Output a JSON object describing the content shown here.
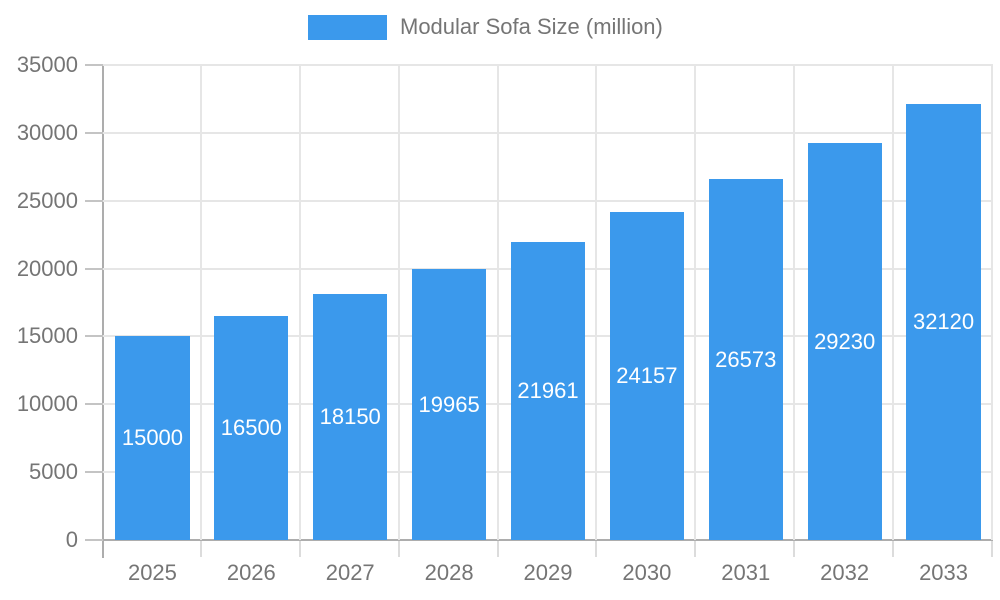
{
  "legend": {
    "label": "Modular Sofa Size (million)"
  },
  "colors": {
    "bar": "#3b99ec",
    "bar_label": "#ffffff",
    "axis_text": "#757575",
    "grid_line": "#e6e6e6",
    "axis_line": "#adadad",
    "background": "#ffffff"
  },
  "chart_data": {
    "type": "bar",
    "title": "Modular Sofa Size (million)",
    "categories": [
      "2025",
      "2026",
      "2027",
      "2028",
      "2029",
      "2030",
      "2031",
      "2032",
      "2033"
    ],
    "series": [
      {
        "name": "Modular Sofa Size (million)",
        "values": [
          15000,
          16500,
          18150,
          19965,
          21961,
          24157,
          26573,
          29230,
          32120
        ]
      }
    ],
    "xlabel": "",
    "ylabel": "",
    "ylim": [
      0,
      35000
    ],
    "ytick_step": 5000,
    "ytick_labels": [
      "0",
      "5000",
      "10000",
      "15000",
      "20000",
      "25000",
      "30000",
      "35000"
    ],
    "grid": "on",
    "legend_position": "top-center",
    "data_labels": "inside-center-white"
  }
}
